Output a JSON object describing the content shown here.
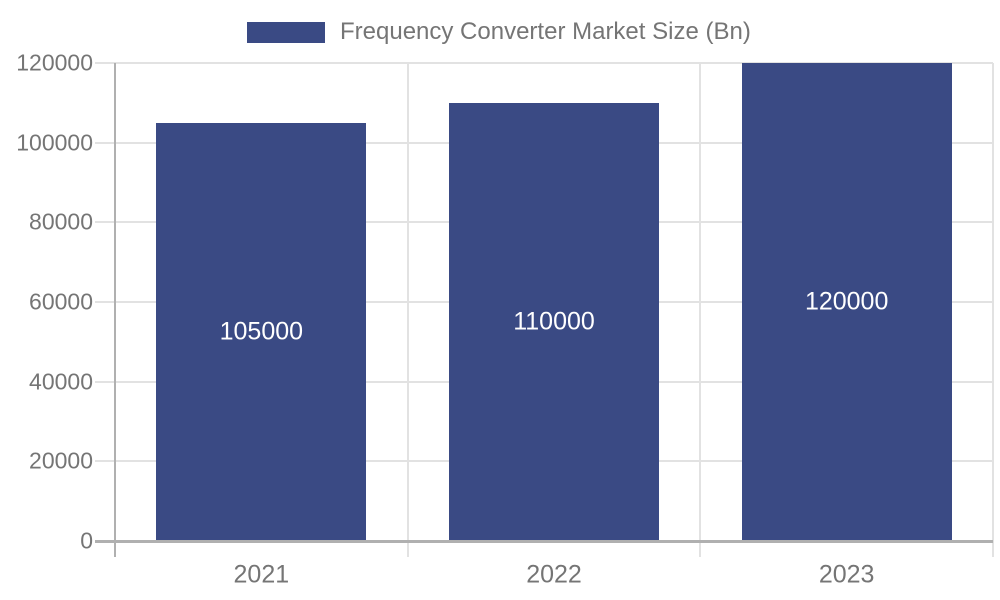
{
  "legend": {
    "label": "Frequency Converter Market Size (Bn)"
  },
  "chart_data": {
    "type": "bar",
    "title": "Frequency Converter Market Size (Bn)",
    "categories": [
      "2021",
      "2022",
      "2023"
    ],
    "values": [
      105000,
      110000,
      120000
    ],
    "bar_labels": [
      "105000",
      "110000",
      "120000"
    ],
    "ytick_labels": [
      "0",
      "20000",
      "40000",
      "60000",
      "80000",
      "100000",
      "120000"
    ],
    "ytick_values": [
      0,
      20000,
      40000,
      60000,
      80000,
      100000,
      120000
    ],
    "ylim": [
      0,
      120000
    ],
    "xlabel": "",
    "ylabel": "",
    "grid": true,
    "legend_position": "top-center",
    "colors": {
      "bar": "#3a4a84",
      "grid": "#e2e2e2",
      "axis": "#b0b0b0",
      "text": "#757575",
      "bar_label_text": "#ffffff",
      "background": "#ffffff"
    }
  }
}
